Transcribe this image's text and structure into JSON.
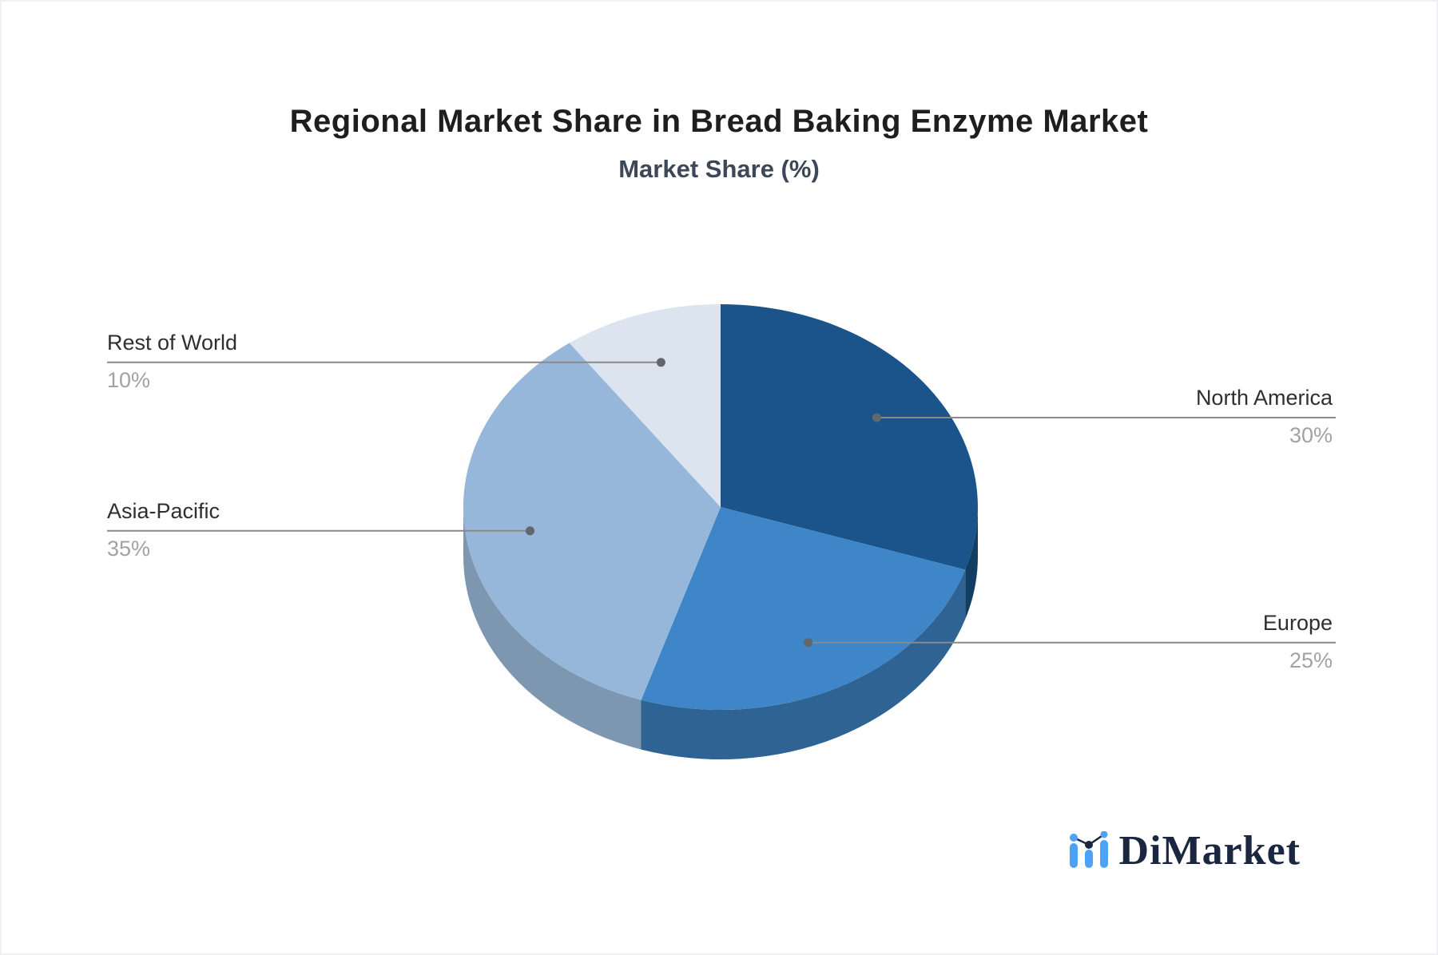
{
  "header": {
    "title": "Regional Market Share in Bread Baking Enzyme Market",
    "subtitle": "Market Share (%)"
  },
  "chart_data": {
    "type": "pie",
    "style": "3d",
    "title": "Regional Market Share in Bread Baking Enzyme Market",
    "subtitle": "Market Share (%)",
    "unit": "%",
    "direction": "clockwise",
    "start_angle_deg": 0,
    "legend_position": "callout-labels",
    "slices": [
      {
        "label": "North America",
        "value": 30,
        "pct_label": "30%",
        "color": "#1a548a",
        "side_color": "#123e63"
      },
      {
        "label": "Europe",
        "value": 25,
        "pct_label": "25%",
        "color": "#3e86c7",
        "side_color": "#2e6394"
      },
      {
        "label": "Asia-Pacific",
        "value": 35,
        "pct_label": "35%",
        "color": "#97b7da",
        "side_color": "#7e97b1"
      },
      {
        "label": "Rest of World",
        "value": 10,
        "pct_label": "10%",
        "color": "#dce4ef",
        "side_color": "#b9c6d8"
      }
    ],
    "callout_line_color": "#898989",
    "callout_dot_color": "#60686e",
    "label_color": "#2f2f2f",
    "pct_color": "#a2a2a2"
  },
  "branding": {
    "logo_text": "DiMarket",
    "logo_icon": "bar-chart-trend-icon",
    "logo_text_color": "#1b2740",
    "logo_icon_color": "#4da2f6"
  }
}
